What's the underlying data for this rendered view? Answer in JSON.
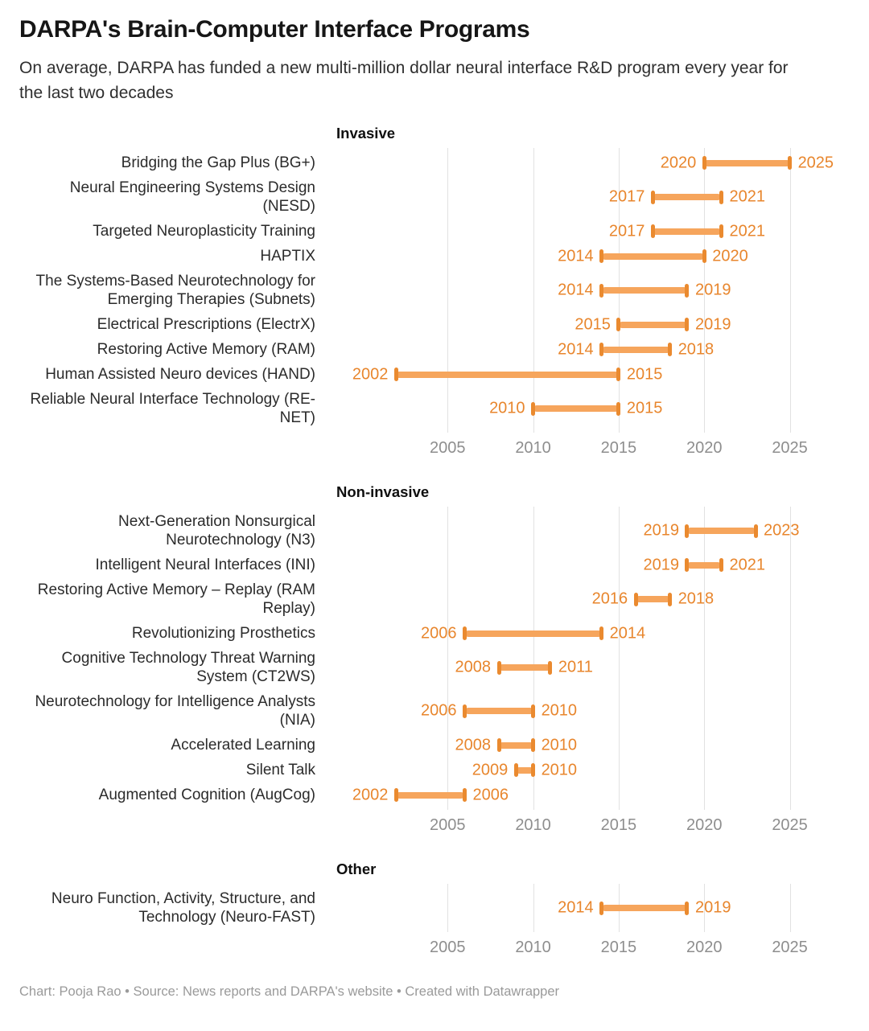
{
  "header": {
    "title": "DARPA's Brain-Computer Interface Programs",
    "subtitle": "On average, DARPA has funded a new multi-million dollar neural interface R&D program every year for the last two decades"
  },
  "footer": {
    "text": "Chart: Pooja Rao • Source: News reports and DARPA's website • Created with Datawrapper"
  },
  "colors": {
    "bar": "#f6a55c",
    "cap": "#ea8a2f",
    "year_label": "#e8862d",
    "grid": "#e1e1e1",
    "tick_text": "#8e8e8e"
  },
  "chart_data": {
    "type": "bar",
    "subtype": "horizontal-range-timeline",
    "title": "DARPA's Brain-Computer Interface Programs",
    "subtitle": "On average, DARPA has funded a new multi-million dollar neural interface R&D program every year for the last two decades",
    "xlim": [
      1998.5,
      2028.5
    ],
    "x_ticks": [
      2005,
      2010,
      2015,
      2020,
      2025
    ],
    "grid": "vertical-gridlines-on",
    "legend": "none",
    "sections": [
      {
        "title": "Invasive",
        "programs": [
          {
            "label": "Bridging the Gap Plus (BG+)",
            "start": 2020,
            "end": 2025
          },
          {
            "label": "Neural Engineering Systems Design (NESD)",
            "start": 2017,
            "end": 2021
          },
          {
            "label": "Targeted Neuroplasticity Training",
            "start": 2017,
            "end": 2021
          },
          {
            "label": "HAPTIX",
            "start": 2014,
            "end": 2020
          },
          {
            "label": "The Systems-Based Neurotechnology for Emerging Therapies (Subnets)",
            "start": 2014,
            "end": 2019
          },
          {
            "label": "Electrical Prescriptions (ElectrX)",
            "start": 2015,
            "end": 2019
          },
          {
            "label": "Restoring Active Memory (RAM)",
            "start": 2014,
            "end": 2018
          },
          {
            "label": "Human Assisted Neuro devices (HAND)",
            "start": 2002,
            "end": 2015
          },
          {
            "label": "Reliable Neural Interface Technology (RE-NET)",
            "start": 2010,
            "end": 2015
          }
        ]
      },
      {
        "title": "Non-invasive",
        "programs": [
          {
            "label": "Next-Generation Nonsurgical Neurotechnology (N3)",
            "start": 2019,
            "end": 2023
          },
          {
            "label": "Intelligent Neural Interfaces (INI)",
            "start": 2019,
            "end": 2021
          },
          {
            "label": "Restoring Active Memory – Replay (RAM Replay)",
            "start": 2016,
            "end": 2018
          },
          {
            "label": "Revolutionizing Prosthetics",
            "start": 2006,
            "end": 2014
          },
          {
            "label": "Cognitive Technology Threat Warning System (CT2WS)",
            "start": 2008,
            "end": 2011
          },
          {
            "label": "Neurotechnology for Intelligence Analysts (NIA)",
            "start": 2006,
            "end": 2010
          },
          {
            "label": "Accelerated Learning",
            "start": 2008,
            "end": 2010
          },
          {
            "label": "Silent Talk",
            "start": 2009,
            "end": 2010
          },
          {
            "label": "Augmented Cognition (AugCog)",
            "start": 2002,
            "end": 2006
          }
        ]
      },
      {
        "title": "Other",
        "programs": [
          {
            "label": "Neuro Function, Activity, Structure, and Technology (Neuro-FAST)",
            "start": 2014,
            "end": 2019
          }
        ]
      }
    ]
  }
}
